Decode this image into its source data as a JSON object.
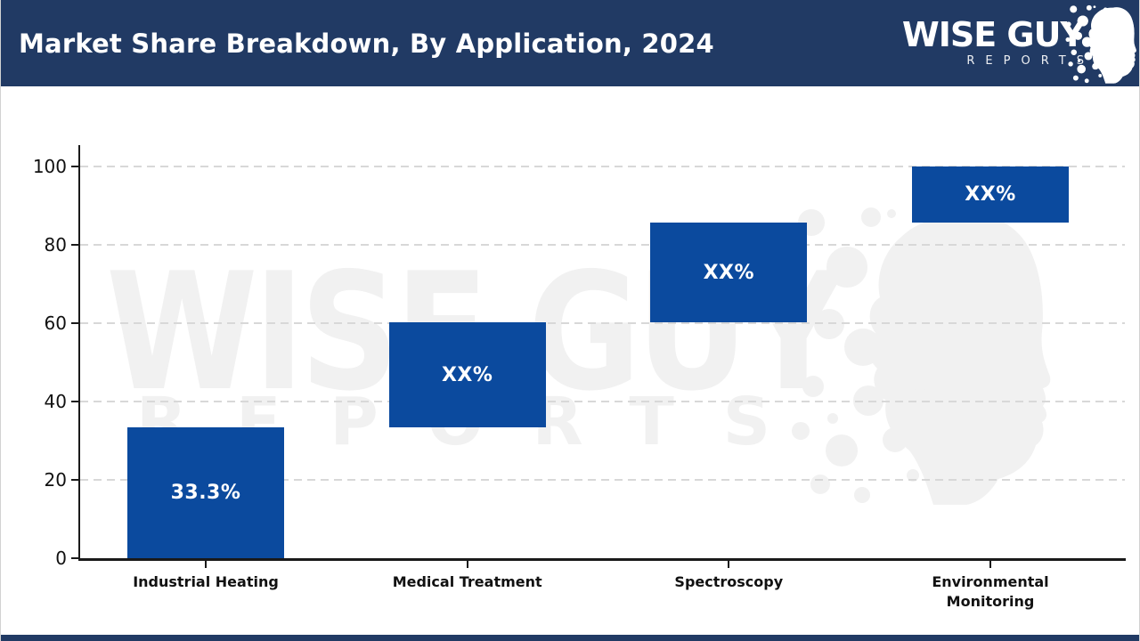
{
  "header": {
    "title": "Market Share Breakdown, By Application, 2024",
    "logo": {
      "name": "WISE GUY",
      "tagline": "REPORTS"
    }
  },
  "watermark": {
    "big_text": "WISE GUY",
    "tagline": "REPORTS"
  },
  "colors": {
    "header_bg": "#213A64",
    "footer_bg": "#213A64",
    "bar_fill": "#0B4A9E",
    "bar_label_text": "#FFFFFF",
    "gridline": "#D8D8D8",
    "axis": "#1A1A1A",
    "tick_text": "#111111",
    "watermark": "#F1F1F1",
    "background": "#FFFFFF"
  },
  "chart_data": {
    "type": "bar",
    "subtype": "waterfall",
    "title": "Market Share Breakdown, By Application, 2024",
    "categories": [
      "Industrial Heating",
      "Medical Treatment",
      "Spectroscopy",
      "Environmental Monitoring"
    ],
    "segments": [
      {
        "category": "Industrial Heating",
        "start": 0,
        "end": 33.3,
        "label": "33.3%"
      },
      {
        "category": "Medical Treatment",
        "start": 33.3,
        "end": 60.3,
        "label": "XX%"
      },
      {
        "category": "Spectroscopy",
        "start": 60.3,
        "end": 85.6,
        "label": "XX%"
      },
      {
        "category": "Environmental Monitoring",
        "start": 85.6,
        "end": 100,
        "label": "XX%"
      }
    ],
    "xlabel": "",
    "ylabel": "",
    "ylim": [
      0,
      100
    ],
    "y_ticks": [
      0,
      20,
      40,
      60,
      80,
      100
    ],
    "grid": "horizontal-dashed",
    "legend_position": "none"
  }
}
